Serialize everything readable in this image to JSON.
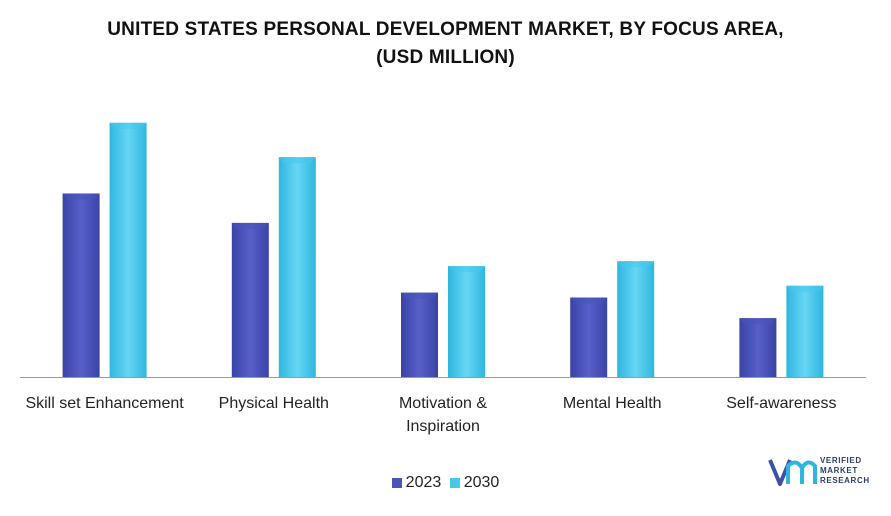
{
  "title_line1": "UNITED STATES PERSONAL DEVELOPMENT MARKET, BY FOCUS AREA,",
  "title_line2": "(USD MILLION)",
  "colors": {
    "s2023": "#4a53b8",
    "s2030": "#45c8ec",
    "axis": "#9a9a9a"
  },
  "chart_data": {
    "type": "bar",
    "title": "UNITED STATES PERSONAL DEVELOPMENT MARKET, BY FOCUS AREA, (USD MILLION)",
    "categories": [
      [
        "Skill set Enhancement"
      ],
      [
        "Physical Health"
      ],
      [
        "Motivation &",
        "Inspiration"
      ],
      [
        "Mental Health"
      ],
      [
        "Self-awareness"
      ]
    ],
    "series": [
      {
        "name": "2023",
        "values": [
          187,
          157,
          86,
          81,
          60
        ]
      },
      {
        "name": "2030",
        "values": [
          259,
          224,
          113,
          118,
          93
        ]
      }
    ],
    "ylim": [
      0,
      270
    ],
    "grid": false,
    "legend": "bottom"
  },
  "legend": {
    "l2023": "2023",
    "l2030": "2030"
  },
  "logo": {
    "l1": "VERIFIED",
    "l2": "MARKET",
    "l3": "RESEARCH",
    "icon": "vmr-logo-icon"
  }
}
